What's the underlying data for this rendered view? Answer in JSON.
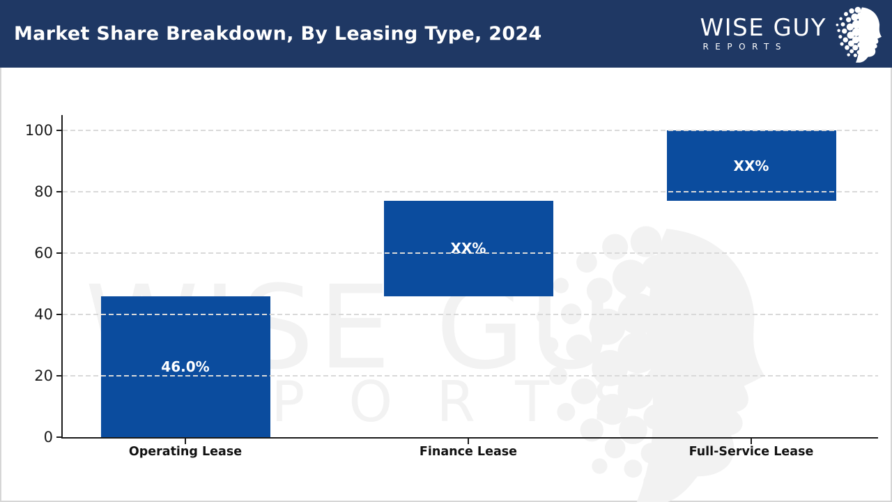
{
  "header": {
    "title": "Market Share Breakdown, By Leasing Type, 2024",
    "logo": {
      "wordmark": "WISE GUY",
      "subtext": "REPORTS"
    }
  },
  "watermark": {
    "wordmark": "WISE GUY",
    "subtext": "REPORTS"
  },
  "colors": {
    "header_bg": "#1f3864",
    "title_text": "#ffffff",
    "logo_fg": "#ffffff",
    "bar": "#0b4c9e",
    "bar_label": "#ffffff",
    "gridline": "#d9d9d9",
    "axis": "#1a1a1a",
    "watermark": "#f2f2f2"
  },
  "chart_data": {
    "type": "bar",
    "subtype": "waterfall",
    "title": "Market Share Breakdown, By Leasing Type, 2024",
    "categories": [
      "Operating Lease",
      "Finance Lease",
      "Full-Service Lease"
    ],
    "segments": [
      {
        "category": "Operating Lease",
        "start": 0,
        "end": 46,
        "label": "46.0%"
      },
      {
        "category": "Finance Lease",
        "start": 46,
        "end": 77,
        "label": "XX%"
      },
      {
        "category": "Full-Service Lease",
        "start": 77,
        "end": 100,
        "label": "XX%"
      }
    ],
    "yticks": [
      0,
      20,
      40,
      60,
      80,
      100
    ],
    "ylim": [
      0,
      105
    ],
    "grid": "horizontal-dashed",
    "legend": "none",
    "bar_color": "#0b4c9e"
  }
}
